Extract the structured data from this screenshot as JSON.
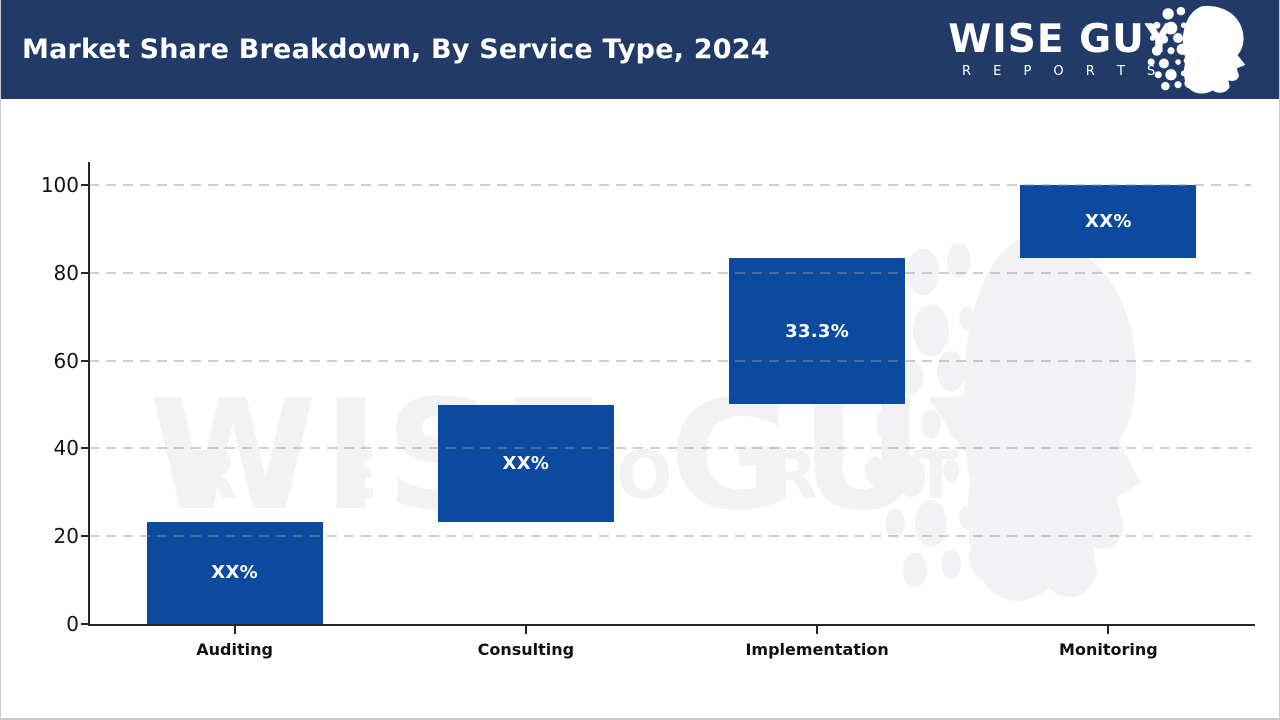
{
  "header": {
    "title": "Market Share Breakdown, By Service Type, 2024",
    "logo": {
      "brand": "WISE GUY",
      "tagline": "R E P O R T S"
    },
    "bg_color": "#213a67"
  },
  "watermark": {
    "brand": "WISE GUY",
    "tagline": "R E P O R T S"
  },
  "chart_data": {
    "type": "bar",
    "subtype": "waterfall",
    "title": "Market Share Breakdown, By Service Type, 2024",
    "categories": [
      "Auditing",
      "Consulting",
      "Implementation",
      "Monitoring"
    ],
    "values": [
      23.3,
      26.7,
      33.3,
      16.7
    ],
    "cumulative_start": [
      0,
      23.3,
      50,
      83.3
    ],
    "cumulative_end": [
      23.3,
      50,
      83.3,
      100
    ],
    "bar_labels": [
      "XX%",
      "XX%",
      "33.3%",
      "XX%"
    ],
    "xlabel": "",
    "ylabel": "",
    "ylim": [
      0,
      100
    ],
    "yticks": [
      0,
      20,
      40,
      60,
      80,
      100
    ],
    "grid": "horizontal-dashed",
    "legend": "none"
  },
  "colors": {
    "bar": "#0b4a9e",
    "bar_label": "#ffffff",
    "header_bg": "#213a67",
    "title_text": "#ffffff",
    "axis": "#262626",
    "tick_text": "#141414",
    "watermark": "#f2f2f3"
  }
}
